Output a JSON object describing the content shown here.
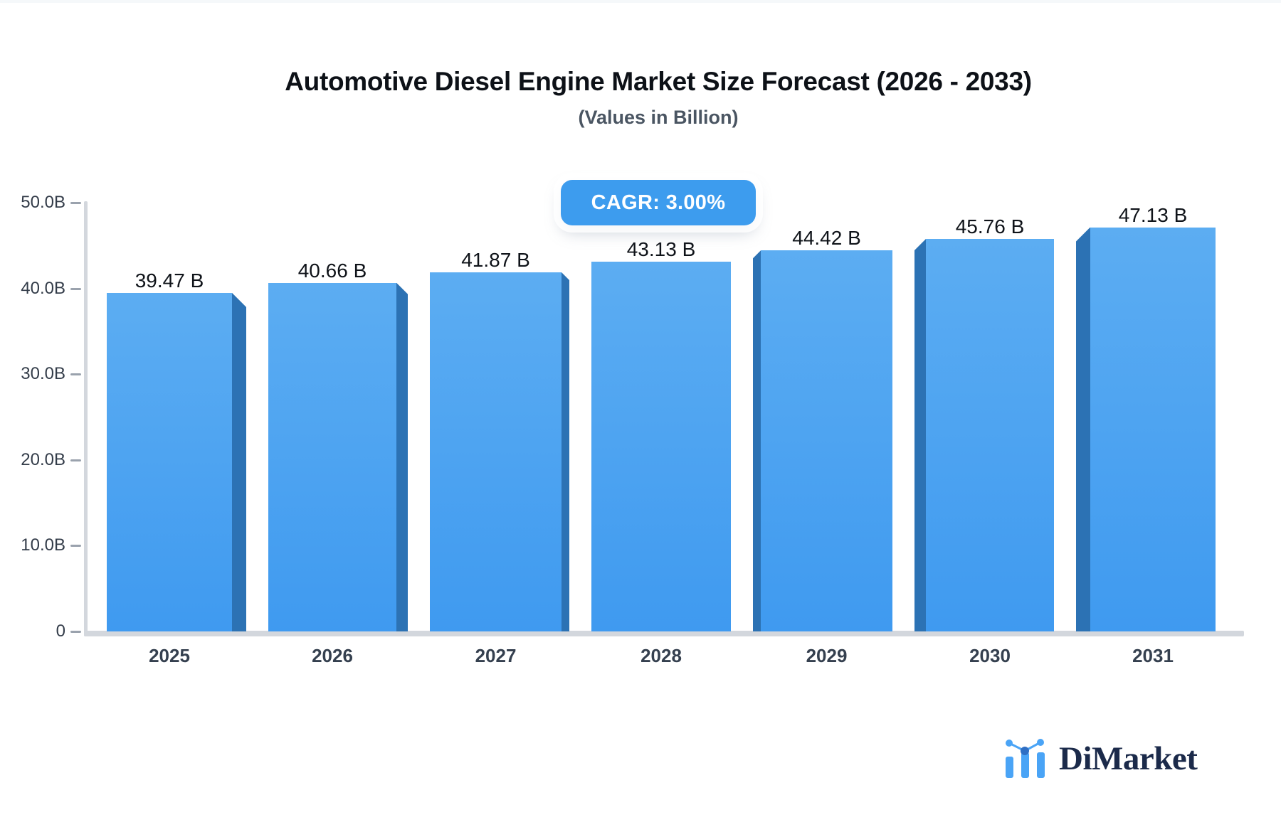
{
  "chart_data": {
    "type": "bar",
    "title": "Automotive Diesel Engine Market Size Forecast (2026 - 2033)",
    "subtitle": "(Values in Billion)",
    "annotation": "CAGR: 3.00%",
    "unit": "Billion",
    "categories": [
      "2025",
      "2026",
      "2027",
      "2028",
      "2029",
      "2030",
      "2031"
    ],
    "values": [
      39.47,
      40.66,
      41.87,
      43.13,
      44.42,
      45.76,
      47.13
    ],
    "value_labels": [
      "39.47 B",
      "40.66 B",
      "41.87 B",
      "43.13 B",
      "44.42 B",
      "45.76 B",
      "47.13 B"
    ],
    "y_axis": {
      "ticks": [
        "0",
        "10.0B",
        "20.0B",
        "30.0B",
        "40.0B",
        "50.0B"
      ],
      "tick_values": [
        0,
        10,
        20,
        30,
        40,
        50
      ],
      "range": [
        0,
        50
      ]
    },
    "grid": "off",
    "legend": "none",
    "style": "3d-beveled-bars",
    "colors": {
      "bar_top": "#5cadf2",
      "bar_bottom": "#3f9af0",
      "bar_side": "#2c72b4",
      "badge_bg": "#3d9cee",
      "badge_text": "#ffffff",
      "axis": "#d3d7dd",
      "tick": "#9aa2ad",
      "y_label": "#333c49",
      "x_label": "#35404f",
      "value_label": "#0f1319",
      "title": "#0d1117",
      "subtitle": "#4a5562",
      "logo_text": "#1b2a4a",
      "logo_icon": "#4aa4f6",
      "logo_icon_dot": "#2f6fc4"
    }
  },
  "branding": {
    "logo_text": "DiMarket",
    "logo_icon": "mini-bar-chart-icon"
  }
}
